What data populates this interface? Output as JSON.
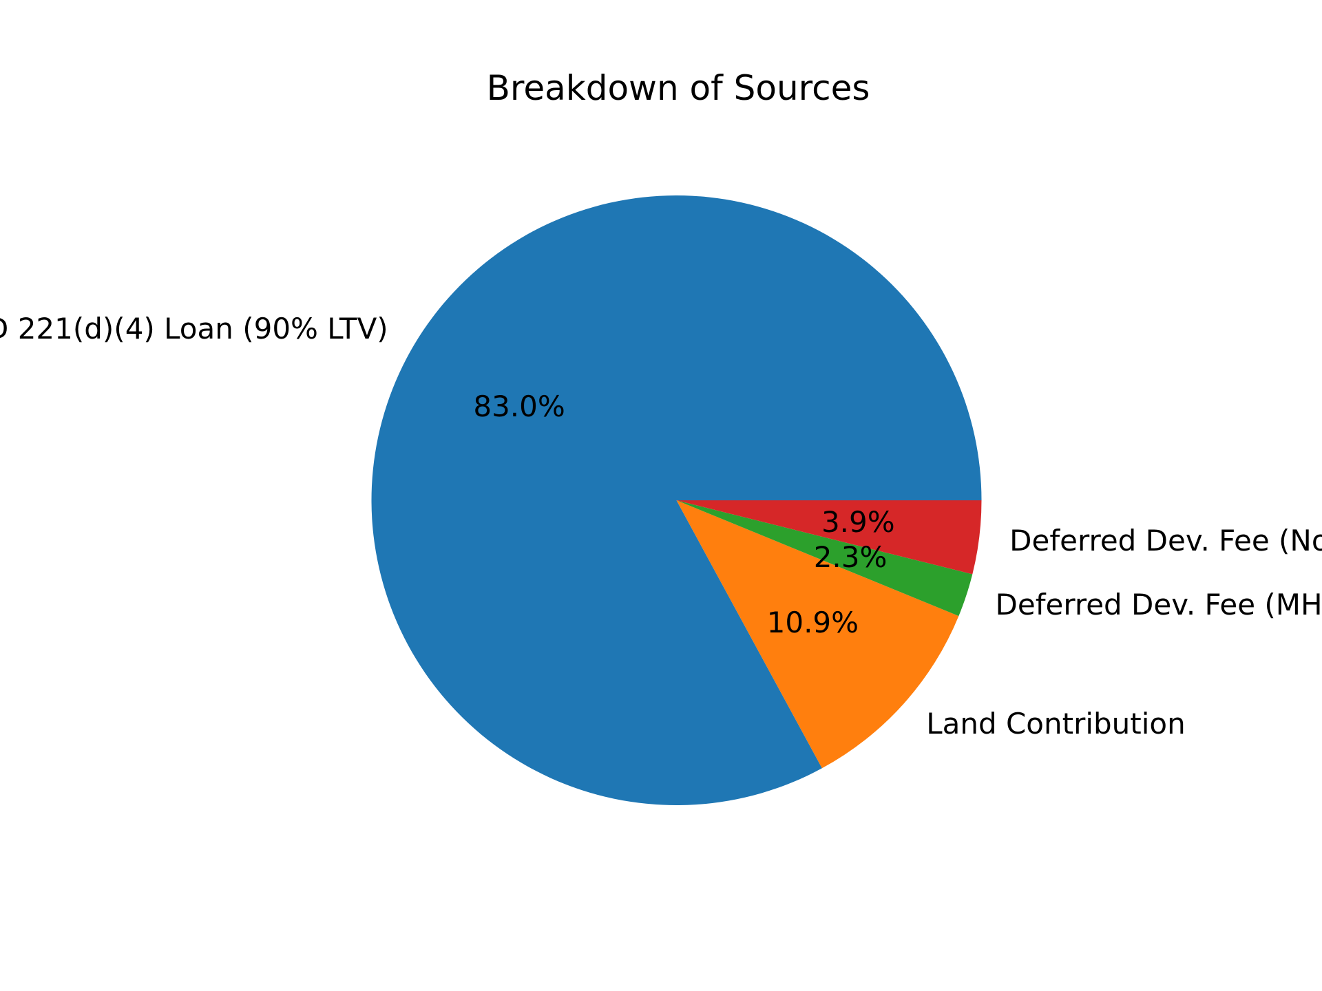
{
  "title": "Breakdown of Sources",
  "chart_data": {
    "type": "pie",
    "title": "Breakdown of Sources",
    "start_angle_deg": 0,
    "direction": "counterclockwise",
    "legend_position": "none",
    "background_color": "#ffffff",
    "text_color": "#000000",
    "series": [
      {
        "label": "D 221(d)(4) Loan (90% LTV)",
        "value": 83.0,
        "pct_label": "83.0%",
        "color": "#1f77b4"
      },
      {
        "label": "Land Contribution",
        "value": 10.9,
        "pct_label": "10.9%",
        "color": "#ff7f0e"
      },
      {
        "label": "Deferred Dev. Fee (MH",
        "value": 2.3,
        "pct_label": "2.3%",
        "color": "#2ca02c"
      },
      {
        "label": "Deferred Dev. Fee (No",
        "value": 3.9,
        "pct_label": "3.9%",
        "color": "#d62728"
      }
    ]
  }
}
